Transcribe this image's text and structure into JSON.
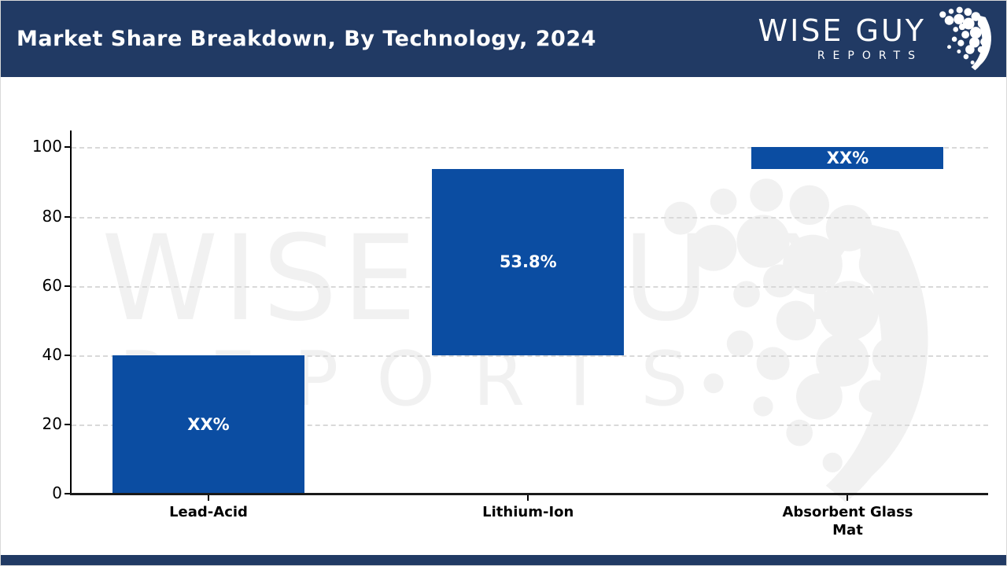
{
  "header": {
    "title": "Market Share Breakdown, By Technology, 2024",
    "logo": {
      "line1": "WISE GUY",
      "line2": "REPORTS"
    }
  },
  "watermark": {
    "line1a": "WISE",
    "line1b": "GUY",
    "line2": "REPORTS"
  },
  "colors": {
    "header_background": "#213A64",
    "footer_background": "#213A64",
    "bar_blue": "#0B4DA2",
    "gridline_gray": "#D9D9D9",
    "watermark_gray": "#F1F1F1"
  },
  "chart_data": {
    "type": "bar",
    "subtype": "waterfall",
    "title": "Market Share Breakdown, By Technology, 2024",
    "categories": [
      "Lead-Acid",
      "Lithium-Ion",
      "Absorbent Glass Mat"
    ],
    "series": [
      {
        "name": "Market Share (%)",
        "segments": [
          {
            "category": "Lead-Acid",
            "start": 0,
            "end": 40,
            "label": "XX%"
          },
          {
            "category": "Lithium-Ion",
            "start": 40,
            "end": 93.8,
            "label": "53.8%"
          },
          {
            "category": "Absorbent Glass Mat",
            "start": 93.8,
            "end": 100,
            "label": "XX%"
          }
        ]
      }
    ],
    "xlabel": "",
    "ylabel": "",
    "yticks": [
      0,
      20,
      40,
      60,
      80,
      100
    ],
    "ylim": [
      0,
      106
    ],
    "bar_color": "#0B4DA2",
    "grid": {
      "show": true,
      "axis": "y",
      "style": "dashed",
      "color": "#D9D9D9"
    },
    "legend": "none"
  }
}
